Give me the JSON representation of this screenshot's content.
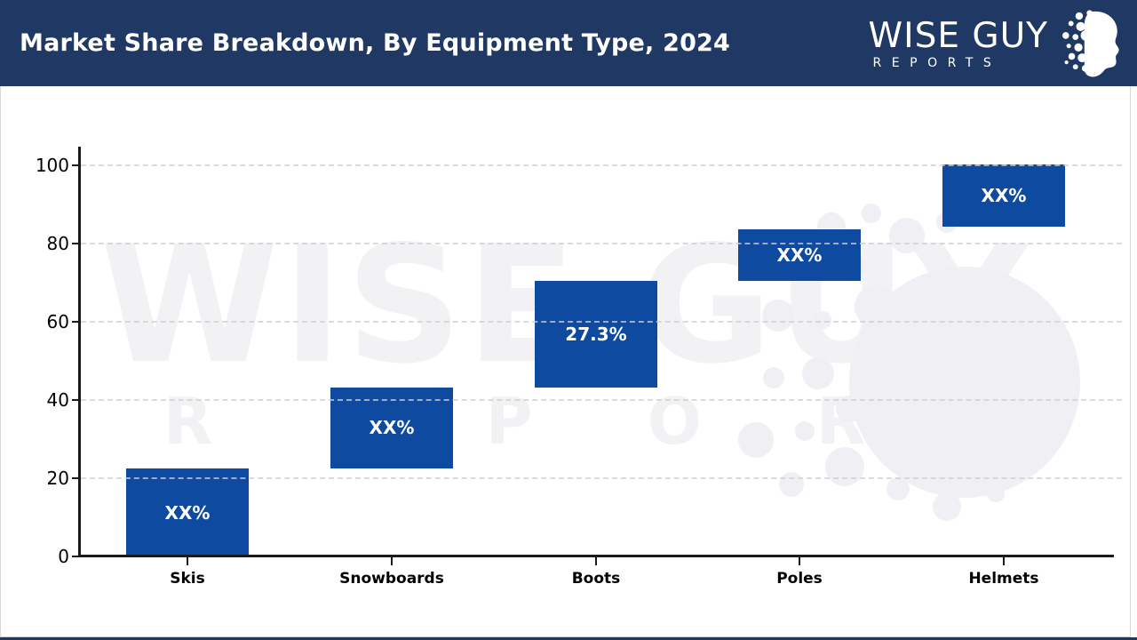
{
  "header": {
    "title": "Market Share Breakdown, By Equipment Type, 2024",
    "bg_color": "#203864",
    "logo": {
      "line1": "WISE GUY",
      "line2": "REPORTS"
    }
  },
  "watermark": {
    "line1": "WISE GUY",
    "line2": "R E P O R T S"
  },
  "chart_data": {
    "type": "bar",
    "subtype": "waterfall-stacked-breakdown",
    "title": "Market Share Breakdown, By Equipment Type, 2024",
    "categories": [
      "Skis",
      "Snowboards",
      "Boots",
      "Poles",
      "Helmets"
    ],
    "segments": [
      {
        "category": "Skis",
        "start": 0,
        "end": 22.5,
        "label": "XX%"
      },
      {
        "category": "Snowboards",
        "start": 22.5,
        "end": 43.2,
        "label": "XX%"
      },
      {
        "category": "Boots",
        "start": 43.2,
        "end": 70.5,
        "label": "27.3%"
      },
      {
        "category": "Poles",
        "start": 70.5,
        "end": 83.7,
        "label": "XX%"
      },
      {
        "category": "Helmets",
        "start": 84.3,
        "end": 100.2,
        "label": "XX%"
      }
    ],
    "yticks": [
      0,
      20,
      40,
      60,
      80,
      100
    ],
    "ylim": [
      0,
      105
    ],
    "xlabel": "",
    "ylabel": "",
    "grid": "horizontal-dashed",
    "bar_color": "#0d4aa0",
    "bar_label_color": "#ffffff",
    "axis_color": "#1a1a1a"
  }
}
